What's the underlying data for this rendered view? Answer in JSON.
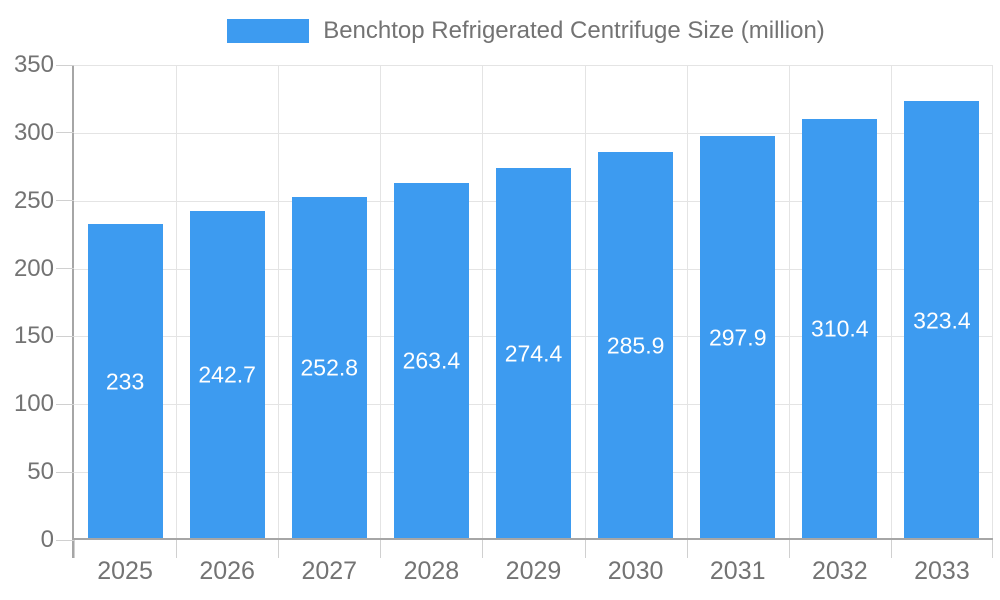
{
  "chart_data": {
    "type": "bar",
    "title": "Benchtop Refrigerated Centrifuge Size (million)",
    "categories": [
      "2025",
      "2026",
      "2027",
      "2028",
      "2029",
      "2030",
      "2031",
      "2032",
      "2033"
    ],
    "values": [
      233,
      242.7,
      252.8,
      263.4,
      274.4,
      285.9,
      297.9,
      310.4,
      323.4
    ],
    "value_labels": [
      "233",
      "242.7",
      "252.8",
      "263.4",
      "274.4",
      "285.9",
      "297.9",
      "310.4",
      "323.4"
    ],
    "series_name": "Benchtop Refrigerated Centrifuge Size (million)",
    "xlabel": "",
    "ylabel": "",
    "ylim": [
      0,
      350
    ],
    "ytick_step": 50,
    "ytick_labels": [
      "0",
      "50",
      "100",
      "150",
      "200",
      "250",
      "300",
      "350"
    ],
    "grid": true,
    "legend_position": "top",
    "value_label_position": "inside-center",
    "colors": {
      "bar": "#3d9bf0",
      "axis_line": "#a6a6a6",
      "grid_line": "#e4e4e4",
      "tick_line": "#d0d0d0",
      "axis_text": "#737373",
      "value_text": "#ffffff",
      "background": "#ffffff"
    }
  }
}
